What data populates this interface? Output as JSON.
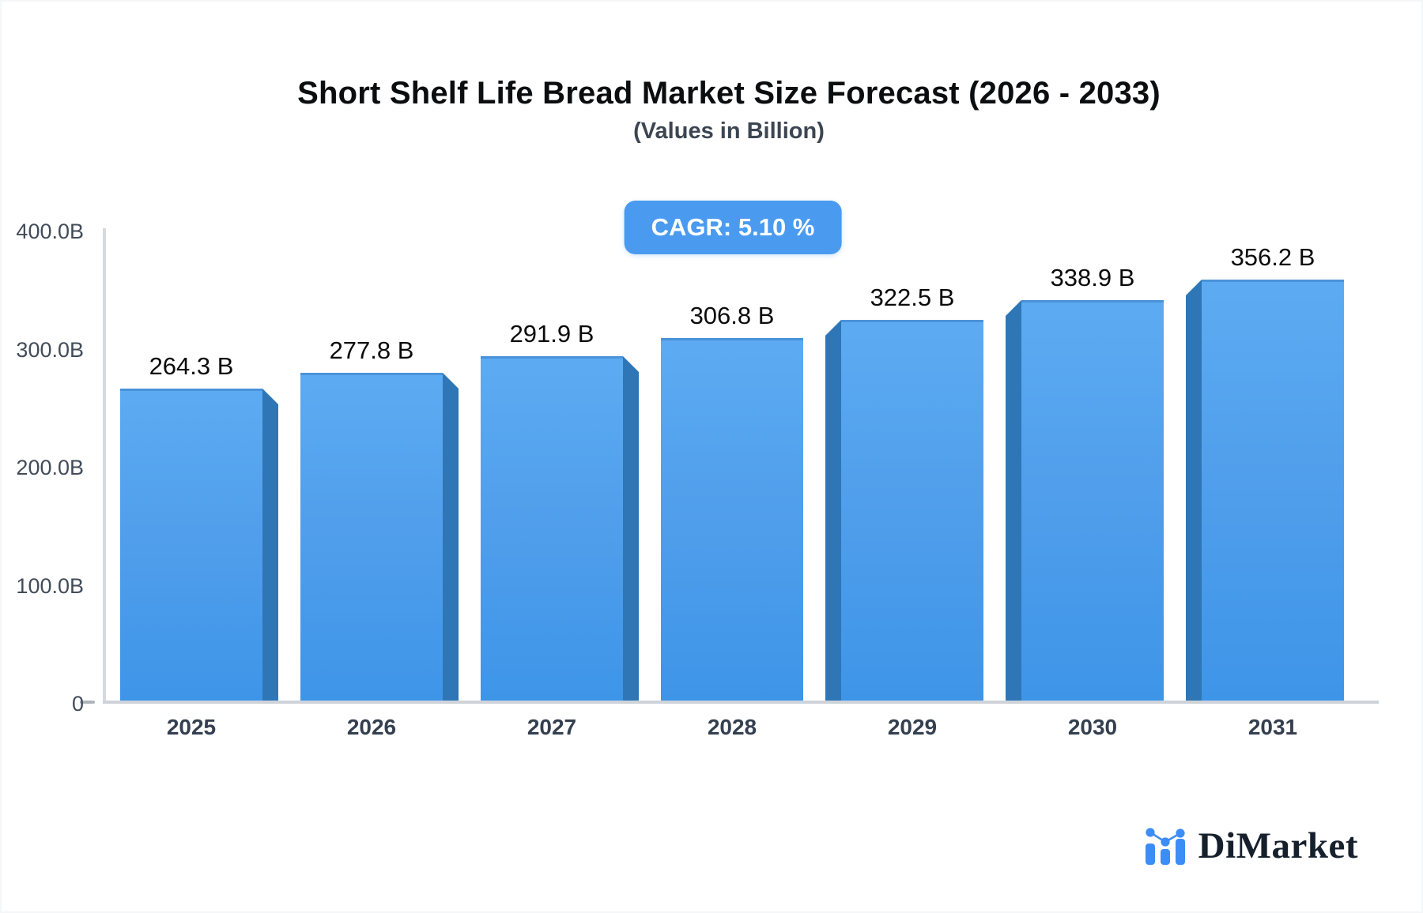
{
  "chart_data": {
    "type": "bar",
    "title": "Short Shelf Life Bread Market Size Forecast (2026 - 2033)",
    "subtitle": "(Values in Billion)",
    "cagr_label": "CAGR: 5.10 %",
    "categories": [
      "2025",
      "2026",
      "2027",
      "2028",
      "2029",
      "2030",
      "2031"
    ],
    "values": [
      264.3,
      277.8,
      291.9,
      306.8,
      322.5,
      338.9,
      356.2
    ],
    "bar_labels": [
      "264.3 B",
      "277.8 B",
      "291.9 B",
      "306.8 B",
      "322.5 B",
      "338.9 B",
      "356.2 B"
    ],
    "ylim": [
      0,
      400
    ],
    "yticks": [
      {
        "v": 400,
        "label": "400.0B"
      },
      {
        "v": 300,
        "label": "300.0B"
      },
      {
        "v": 200,
        "label": "200.0B"
      },
      {
        "v": 100,
        "label": "100.0B"
      },
      {
        "v": 0,
        "label": "0"
      }
    ],
    "grid": false,
    "legend": "none"
  },
  "colors": {
    "bar_face_top": "#5cabf2",
    "bar_face_bottom": "#3e95e8",
    "bar_side": "#2e76b6",
    "bar_top_edge": "#4a92da",
    "badge_bg": "#4a9bf0",
    "axis_line": "#d6d9dd",
    "baseline": "#ced3d9",
    "logo_blue": "#3d8df7",
    "logo_navy": "#16202d"
  },
  "logo": {
    "text": "DiMarket",
    "icon": "bar-chart-icon"
  }
}
